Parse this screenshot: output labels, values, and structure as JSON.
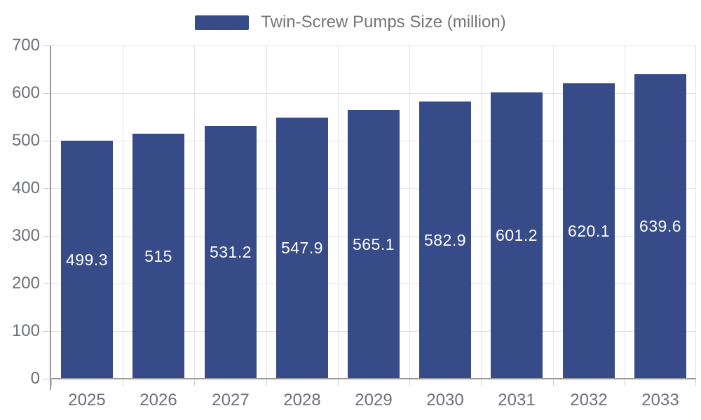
{
  "chart_data": {
    "type": "bar",
    "title": "Twin-Screw Pumps Size (million)",
    "legend": {
      "position": "top",
      "label": "Twin-Screw Pumps Size (million)"
    },
    "categories": [
      "2025",
      "2026",
      "2027",
      "2028",
      "2029",
      "2030",
      "2031",
      "2032",
      "2033"
    ],
    "values": [
      499.3,
      515,
      531.2,
      547.9,
      565.1,
      582.9,
      601.2,
      620.1,
      639.6
    ],
    "value_labels": [
      "499.3",
      "515",
      "531.2",
      "547.9",
      "565.1",
      "582.9",
      "601.2",
      "620.1",
      "639.6"
    ],
    "xlabel": "",
    "ylabel": "",
    "ylim": [
      0,
      700
    ],
    "yticks": [
      0,
      100,
      200,
      300,
      400,
      500,
      600,
      700
    ],
    "grid": true,
    "colors": {
      "bar": "#364B87",
      "value_label": "#FFFFFF",
      "axis_line": "#999999",
      "tick_mark": "#CCCCCC",
      "grid_line": "#E2E3E8",
      "axis_label": "#6E7079",
      "legend_text": "#757575",
      "background": "#FFFFFF"
    }
  }
}
